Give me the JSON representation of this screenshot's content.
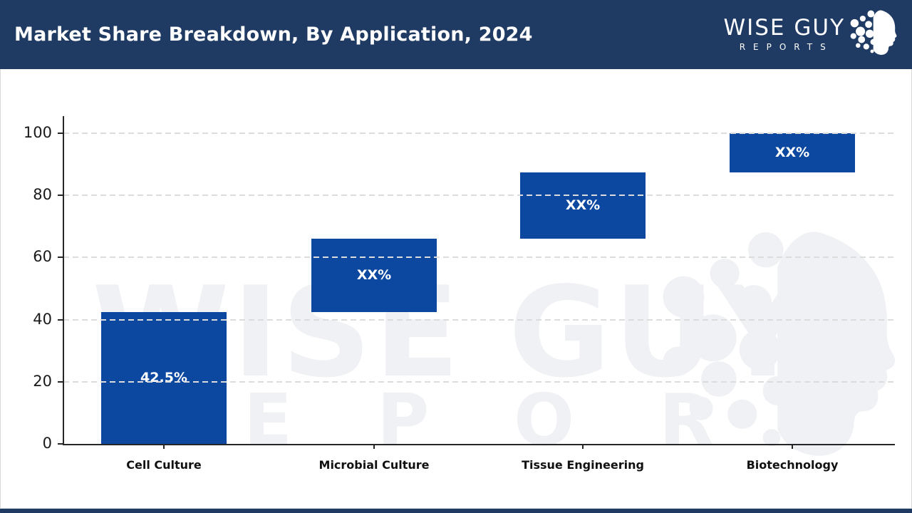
{
  "header": {
    "title": "Market Share Breakdown, By Application, 2024",
    "logo": {
      "line1": "WISE GUY",
      "line2": "REPORTS"
    }
  },
  "watermark": {
    "line1": "WISE GUY",
    "line2": "R E P O R T S"
  },
  "colors": {
    "header_bg": "#1f3a63",
    "footer_bg": "#1f3a63",
    "bar": "#0c489f",
    "grid": "#dcdcdc",
    "axis": "#262626",
    "bar_label": "#ffffff",
    "watermark": "#f0f1f4"
  },
  "chart_data": {
    "type": "bar",
    "subtype": "waterfall",
    "title": "Market Share Breakdown, By Application, 2024",
    "categories": [
      "Cell Culture",
      "Microbial Culture",
      "Tissue Engineering",
      "Biotechnology"
    ],
    "bars": [
      {
        "category": "Cell Culture",
        "start": 0,
        "end": 42.5,
        "label": "42.5%"
      },
      {
        "category": "Microbial Culture",
        "start": 42.5,
        "end": 66,
        "label": "XX%"
      },
      {
        "category": "Tissue Engineering",
        "start": 66,
        "end": 87.5,
        "label": "XX%"
      },
      {
        "category": "Biotechnology",
        "start": 87.5,
        "end": 100,
        "label": "XX%"
      }
    ],
    "y_ticks": [
      0,
      20,
      40,
      60,
      80,
      100
    ],
    "ylim": [
      0,
      105
    ],
    "xlabel": "",
    "ylabel": "",
    "grid": "horizontal-dashed-over-bars",
    "legend": "none",
    "bar_color": "#0c489f"
  }
}
